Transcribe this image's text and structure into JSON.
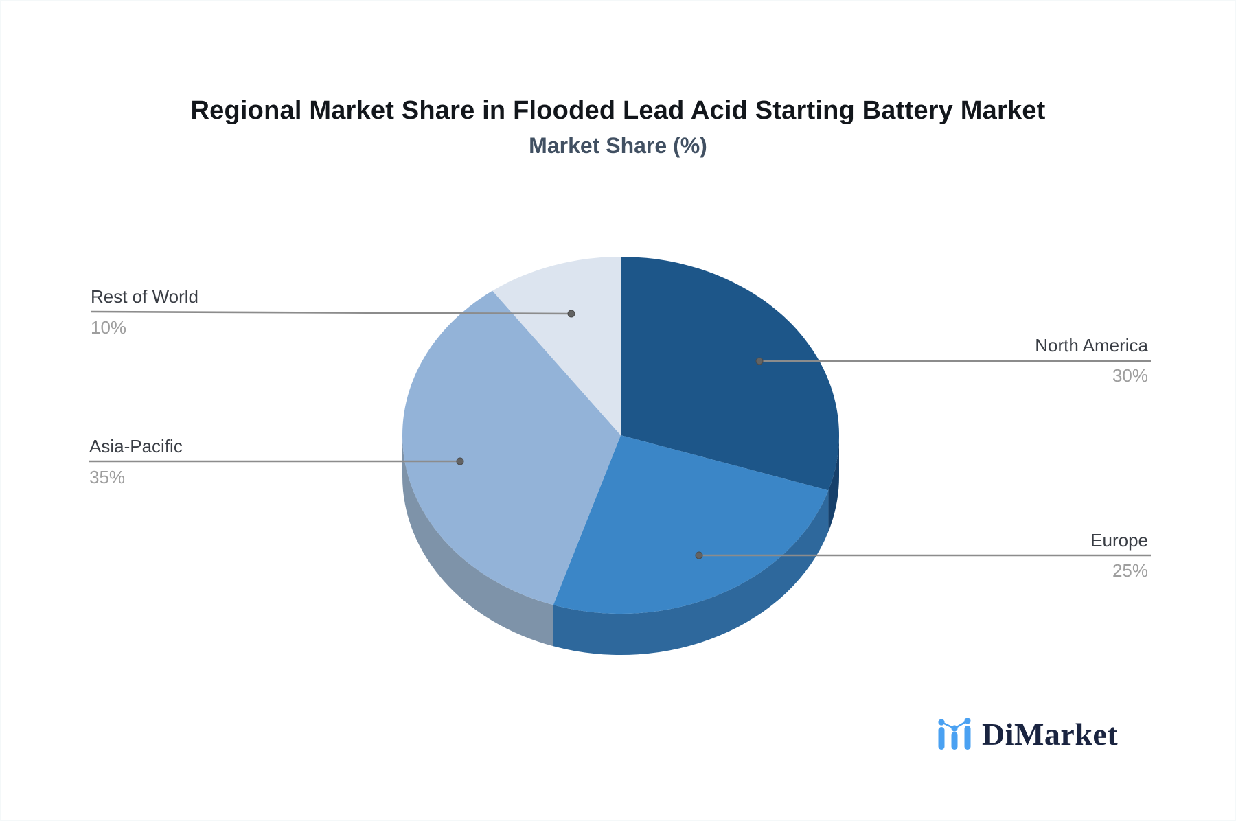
{
  "title": "Regional Market Share in Flooded Lead Acid Starting Battery Market",
  "subtitle": "Market Share (%)",
  "callouts": [
    {
      "label": "North America",
      "pct": "30%"
    },
    {
      "label": "Europe",
      "pct": "25%"
    },
    {
      "label": "Asia-Pacific",
      "pct": "35%"
    },
    {
      "label": "Rest of World",
      "pct": "10%"
    }
  ],
  "logo": {
    "text": "DiMarket"
  },
  "chart_data": {
    "type": "pie",
    "title": "Regional Market Share in Flooded Lead Acid Starting Battery Market",
    "subtitle": "Market Share (%)",
    "categories": [
      "North America",
      "Europe",
      "Asia-Pacific",
      "Rest of World"
    ],
    "values": [
      30,
      25,
      35,
      10
    ],
    "unit": "%",
    "percent_labels": [
      "30%",
      "25%",
      "35%",
      "10%"
    ],
    "start_angle_deg": 0,
    "direction": "clockwise",
    "style": "3d-pie",
    "legend": "none (direct callout labels)",
    "colors": {
      "top": [
        "#1d5689",
        "#3b86c7",
        "#93b3d8",
        "#dce4ef"
      ],
      "side": [
        "#16406b",
        "#2e689c",
        "#7e93a9",
        null
      ]
    },
    "callout_line_color": "#8c8c8c",
    "callout_dot_color": "#636363",
    "label_color": "#3a3e45",
    "percent_color": "#9e9e9e",
    "logo_accent_color": "#4aa1f2",
    "logo_text_color": "#1a2440"
  }
}
